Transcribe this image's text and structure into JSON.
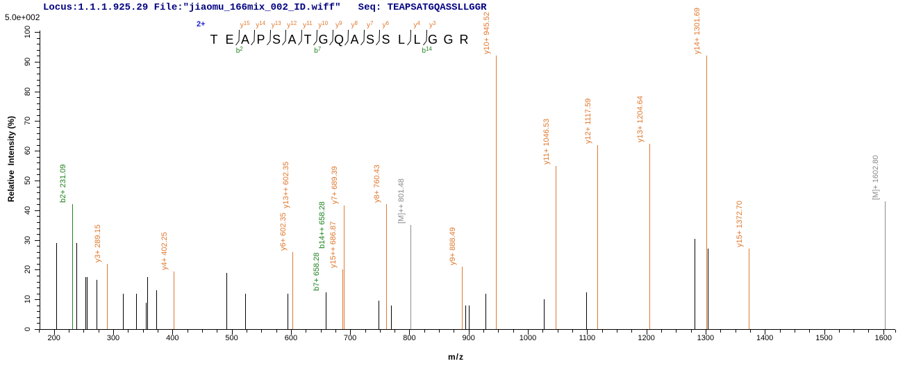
{
  "header": {
    "line_full": "Locus:1.1.1.925.29 File:\"jiaomu_166mix_002_ID.wiff\"   Seq: TEAPSATGQASSLLGGR",
    "intensity_scale": "5.0e+002"
  },
  "colors": {
    "orange": "#E0782D",
    "green": "#1E821E",
    "gray": "#8A8A8A",
    "black": "#000000",
    "navy": "#000080",
    "charge_blue": "#2020CC"
  },
  "sequence": {
    "charge": "2+",
    "residues": [
      "T",
      "E",
      "A",
      "P",
      "S",
      "A",
      "T",
      "G",
      "Q",
      "A",
      "S",
      "S",
      "L",
      "L",
      "G",
      "G",
      "R"
    ],
    "fragments": [
      {
        "before": 2,
        "y": "y15",
        "b": "b2"
      },
      {
        "before": 3,
        "y": "y14"
      },
      {
        "before": 4,
        "y": "y13"
      },
      {
        "before": 5,
        "y": "y12"
      },
      {
        "before": 6,
        "y": "y11"
      },
      {
        "before": 7,
        "y": "y10",
        "b": "b7"
      },
      {
        "before": 8,
        "y": "y9"
      },
      {
        "before": 9,
        "y": "y8"
      },
      {
        "before": 10,
        "y": "y7"
      },
      {
        "before": 11,
        "y": "y6"
      },
      {
        "before": 13,
        "y": "y4"
      },
      {
        "before": 14,
        "y": "y3",
        "b": "b14"
      }
    ]
  },
  "axes": {
    "x": {
      "label": "m/z",
      "min": 175,
      "max": 1620,
      "major_step": 100,
      "minor_step": 25,
      "label_min": 200,
      "label_max": 1600
    },
    "y": {
      "label": "Relative  Intensity (%)",
      "min": 0,
      "max": 100,
      "major_step": 10,
      "minor_step": 2
    }
  },
  "chart_data": {
    "type": "bar",
    "subtype": "ms2-fragment-stick-spectrum",
    "title": "",
    "xlabel": "m/z",
    "ylabel": "Relative  Intensity (%)",
    "xlim": [
      175,
      1620
    ],
    "ylim": [
      0,
      100
    ],
    "grid": false,
    "peaks": [
      {
        "mz": 204.0,
        "intensity": 29,
        "color": "black"
      },
      {
        "mz": 231.09,
        "intensity": 42,
        "color": "green",
        "labels": [
          {
            "text": "b2+ 231.09",
            "color": "green"
          }
        ]
      },
      {
        "mz": 238.0,
        "intensity": 29,
        "color": "black"
      },
      {
        "mz": 253.0,
        "intensity": 17.5,
        "color": "black"
      },
      {
        "mz": 255.0,
        "intensity": 17.5,
        "color": "black"
      },
      {
        "mz": 272.0,
        "intensity": 16.5,
        "color": "black"
      },
      {
        "mz": 289.15,
        "intensity": 22,
        "color": "orange",
        "labels": [
          {
            "text": "y3+ 289.15",
            "color": "orange"
          }
        ]
      },
      {
        "mz": 317.0,
        "intensity": 12,
        "color": "black"
      },
      {
        "mz": 339.0,
        "intensity": 12,
        "color": "black"
      },
      {
        "mz": 355.0,
        "intensity": 9,
        "color": "black"
      },
      {
        "mz": 357.0,
        "intensity": 17.5,
        "color": "black"
      },
      {
        "mz": 373.0,
        "intensity": 13,
        "color": "black"
      },
      {
        "mz": 402.25,
        "intensity": 19.5,
        "color": "orange",
        "labels": [
          {
            "text": "y4+ 402.25",
            "color": "orange"
          }
        ]
      },
      {
        "mz": 491.0,
        "intensity": 19,
        "color": "black"
      },
      {
        "mz": 523.0,
        "intensity": 12,
        "color": "black"
      },
      {
        "mz": 594.0,
        "intensity": 12,
        "color": "black"
      },
      {
        "mz": 602.35,
        "intensity": 26,
        "color": "orange",
        "labels": [
          {
            "text": "y6+ 602.35",
            "color": "orange"
          },
          {
            "text": "y13++ 602.35",
            "color": "orange",
            "dx": 4
          }
        ]
      },
      {
        "mz": 658.28,
        "intensity": 12.5,
        "color": "black",
        "labels": [
          {
            "text": "b7+ 658.28",
            "color": "green"
          },
          {
            "text": "b14++ 658.28",
            "color": "green",
            "dx": 8
          }
        ]
      },
      {
        "mz": 686.87,
        "intensity": 20,
        "color": "orange",
        "labels": [
          {
            "text": "y15++ 686.87",
            "color": "orange"
          }
        ]
      },
      {
        "mz": 689.39,
        "intensity": 41.5,
        "color": "orange",
        "labels": [
          {
            "text": "y7+ 689.39",
            "color": "orange"
          }
        ]
      },
      {
        "mz": 748.0,
        "intensity": 9.5,
        "color": "black"
      },
      {
        "mz": 760.43,
        "intensity": 42,
        "color": "orange",
        "labels": [
          {
            "text": "y8+ 760.43",
            "color": "orange"
          }
        ]
      },
      {
        "mz": 769.0,
        "intensity": 8,
        "color": "black"
      },
      {
        "mz": 801.48,
        "intensity": 35,
        "color": "gray",
        "labels": [
          {
            "text": "[M]++ 801.48",
            "color": "gray"
          }
        ]
      },
      {
        "mz": 888.49,
        "intensity": 21,
        "color": "orange",
        "labels": [
          {
            "text": "y9+ 888.49",
            "color": "orange"
          }
        ]
      },
      {
        "mz": 895.0,
        "intensity": 8,
        "color": "black"
      },
      {
        "mz": 900.0,
        "intensity": 8,
        "color": "black"
      },
      {
        "mz": 928.0,
        "intensity": 12,
        "color": "black"
      },
      {
        "mz": 945.52,
        "intensity": 92,
        "color": "orange",
        "labels": [
          {
            "text": "y10+ 945.52",
            "color": "orange"
          }
        ]
      },
      {
        "mz": 1027.0,
        "intensity": 10,
        "color": "black"
      },
      {
        "mz": 1046.53,
        "intensity": 55,
        "color": "orange",
        "labels": [
          {
            "text": "y11+ 1046.53",
            "color": "orange"
          }
        ]
      },
      {
        "mz": 1098.0,
        "intensity": 12.5,
        "color": "black"
      },
      {
        "mz": 1117.59,
        "intensity": 62,
        "color": "orange",
        "labels": [
          {
            "text": "y12+ 1117.59",
            "color": "orange"
          }
        ]
      },
      {
        "mz": 1204.64,
        "intensity": 62.5,
        "color": "orange",
        "labels": [
          {
            "text": "y13+ 1204.64",
            "color": "orange"
          }
        ]
      },
      {
        "mz": 1281.0,
        "intensity": 30.5,
        "color": "black"
      },
      {
        "mz": 1301.69,
        "intensity": 92,
        "color": "orange",
        "labels": [
          {
            "text": "y14+ 1301.69",
            "color": "orange"
          }
        ]
      },
      {
        "mz": 1303.5,
        "intensity": 27,
        "color": "black"
      },
      {
        "mz": 1372.7,
        "intensity": 27,
        "color": "orange",
        "labels": [
          {
            "text": "y15+ 1372.70",
            "color": "orange"
          }
        ]
      },
      {
        "mz": 1602.8,
        "intensity": 43,
        "color": "gray",
        "labels": [
          {
            "text": "[M]+ 1602.80",
            "color": "gray"
          }
        ]
      }
    ]
  }
}
